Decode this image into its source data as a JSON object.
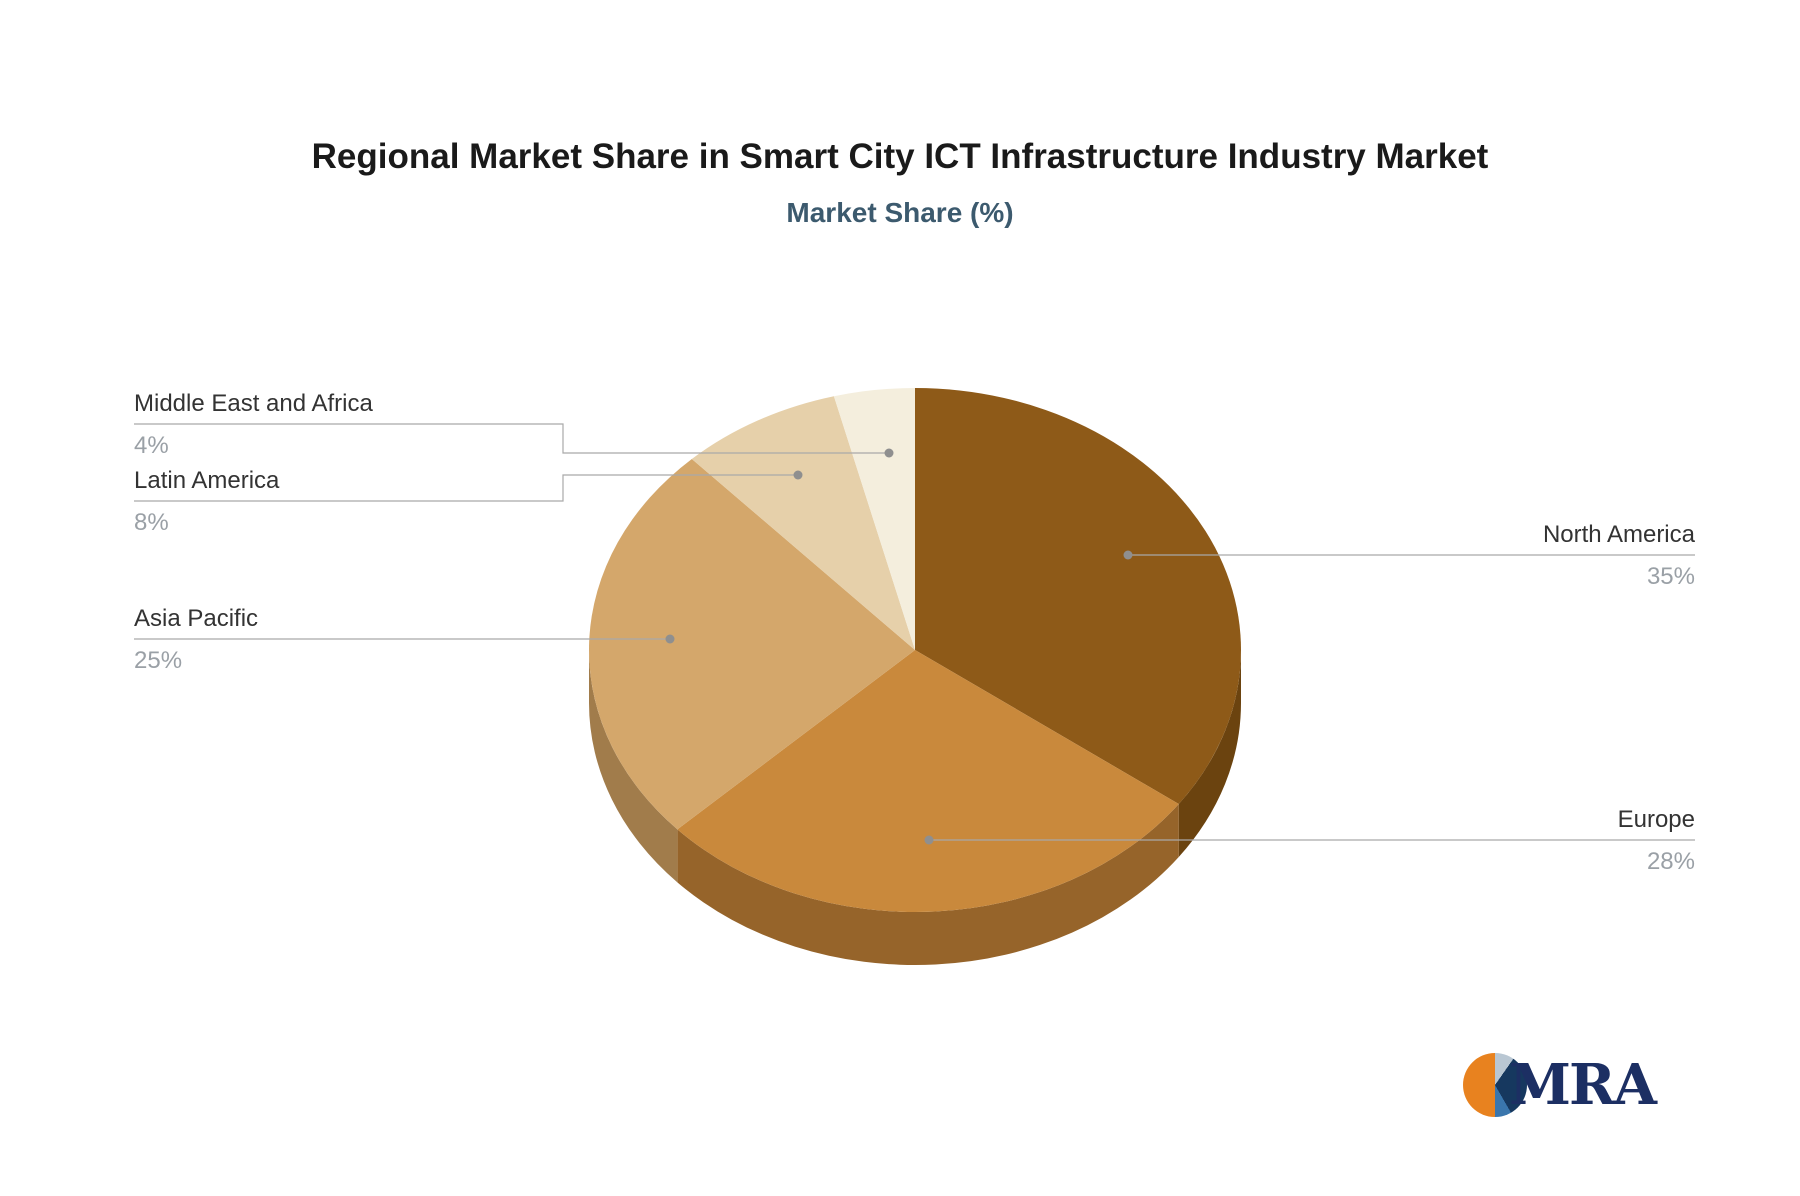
{
  "chart_data": {
    "type": "pie",
    "title": "Regional Market Share in Smart City ICT Infrastructure Industry Market",
    "subtitle": "Market Share (%)",
    "unit": "%",
    "effect": "3d",
    "direction": "clockwise",
    "start_angle_deg": -90,
    "legend_position": "callouts",
    "segments": [
      {
        "label": "North America",
        "value": 35,
        "percent_label": "35%",
        "color": "#8e5a18",
        "side_color": "#6b430f"
      },
      {
        "label": "Europe",
        "value": 28,
        "percent_label": "28%",
        "color": "#c9893c",
        "side_color": "#96642a"
      },
      {
        "label": "Asia Pacific",
        "value": 25,
        "percent_label": "25%",
        "color": "#d4a76b",
        "side_color": "#a17c4b"
      },
      {
        "label": "Latin America",
        "value": 8,
        "percent_label": "8%",
        "color": "#e6d0aa",
        "side_color": "#b3a07f"
      },
      {
        "label": "Middle East and Africa",
        "value": 4,
        "percent_label": "4%",
        "color": "#f4eedd",
        "side_color": "#c4bcab"
      }
    ]
  },
  "logo": {
    "text": "MRA",
    "colors": {
      "orange": "#e8821f",
      "navy": "#16385f",
      "blue": "#3a76ad",
      "light": "#b9c7d3",
      "text": "#1c2f63"
    }
  },
  "colors": {
    "title": "#1a1a1a",
    "subtitle": "#3c5a6e",
    "label": "#333333",
    "percent": "#9aa0a6",
    "leader_line": "#a9a9a9"
  }
}
